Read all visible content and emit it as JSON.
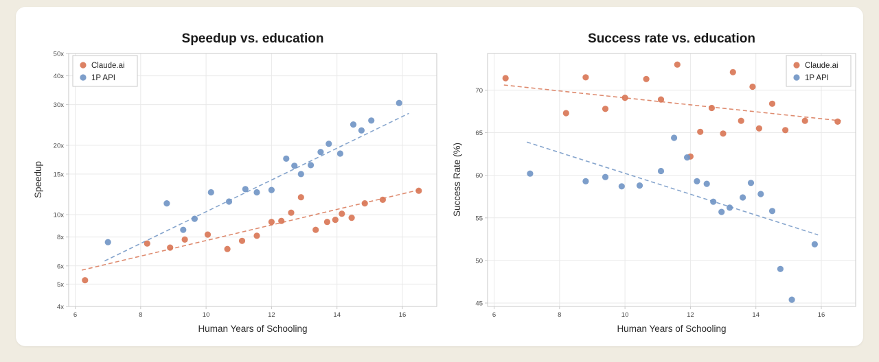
{
  "page": {
    "background_color": "#f0ece1",
    "card_color": "#ffffff"
  },
  "colors": {
    "grid": "#e9e9e9",
    "frame": "#c9c9c9",
    "tick_text": "#4a4a4a",
    "title_text": "#1a1a1a"
  },
  "chart_data": [
    {
      "type": "scatter",
      "title": "Speedup vs. education",
      "xlabel": "Human Years of Schooling",
      "ylabel": "Speedup",
      "yscale": "log",
      "xlim": [
        5.8,
        17.05
      ],
      "ylim": [
        4,
        50
      ],
      "xticks": [
        6,
        8,
        10,
        12,
        14,
        16
      ],
      "yticks": [
        4,
        5,
        6,
        8,
        10,
        15,
        20,
        30,
        40,
        50
      ],
      "ytick_suffix": "x",
      "grid": true,
      "legend_position": "top-left",
      "series": [
        {
          "name": "Claude.ai",
          "color": "#d97757",
          "points": [
            [
              6.3,
              5.2
            ],
            [
              8.2,
              7.5
            ],
            [
              8.9,
              7.2
            ],
            [
              9.35,
              7.8
            ],
            [
              10.05,
              8.2
            ],
            [
              10.65,
              7.1
            ],
            [
              11.1,
              7.7
            ],
            [
              11.55,
              8.1
            ],
            [
              12.0,
              9.3
            ],
            [
              12.3,
              9.4
            ],
            [
              12.6,
              10.2
            ],
            [
              12.9,
              11.9
            ],
            [
              13.35,
              8.6
            ],
            [
              13.7,
              9.3
            ],
            [
              13.95,
              9.5
            ],
            [
              14.15,
              10.1
            ],
            [
              14.45,
              9.7
            ],
            [
              14.85,
              11.2
            ],
            [
              15.4,
              11.6
            ],
            [
              16.5,
              12.7
            ]
          ],
          "trend": [
            [
              6.2,
              5.75
            ],
            [
              16.6,
              12.9
            ]
          ]
        },
        {
          "name": "1P API",
          "color": "#7296c5",
          "points": [
            [
              7.0,
              7.6
            ],
            [
              8.8,
              11.2
            ],
            [
              9.3,
              8.6
            ],
            [
              9.65,
              9.6
            ],
            [
              10.15,
              12.5
            ],
            [
              10.7,
              11.4
            ],
            [
              11.2,
              12.9
            ],
            [
              11.55,
              12.5
            ],
            [
              12.0,
              12.8
            ],
            [
              12.45,
              17.5
            ],
            [
              12.7,
              16.3
            ],
            [
              12.9,
              15.0
            ],
            [
              13.2,
              16.4
            ],
            [
              13.5,
              18.7
            ],
            [
              13.75,
              20.3
            ],
            [
              14.1,
              18.4
            ],
            [
              14.5,
              24.6
            ],
            [
              14.75,
              23.2
            ],
            [
              15.05,
              25.6
            ],
            [
              15.9,
              30.5
            ]
          ],
          "trend": [
            [
              6.9,
              6.3
            ],
            [
              16.2,
              27.5
            ]
          ]
        }
      ]
    },
    {
      "type": "scatter",
      "title": "Success rate vs. education",
      "xlabel": "Human Years of Schooling",
      "ylabel": "Success Rate (%)",
      "yscale": "linear",
      "xlim": [
        5.8,
        17.05
      ],
      "ylim": [
        44.6,
        74.3
      ],
      "xticks": [
        6,
        8,
        10,
        12,
        14,
        16
      ],
      "yticks": [
        45,
        50,
        55,
        60,
        65,
        70
      ],
      "ytick_suffix": "",
      "grid": true,
      "legend_position": "top-right",
      "series": [
        {
          "name": "Claude.ai",
          "color": "#d97757",
          "points": [
            [
              6.35,
              71.4
            ],
            [
              8.2,
              67.3
            ],
            [
              8.8,
              71.5
            ],
            [
              9.4,
              67.8
            ],
            [
              10.0,
              69.1
            ],
            [
              10.65,
              71.3
            ],
            [
              11.1,
              68.9
            ],
            [
              11.6,
              73.0
            ],
            [
              12.0,
              62.2
            ],
            [
              12.3,
              65.1
            ],
            [
              12.65,
              67.9
            ],
            [
              13.0,
              64.9
            ],
            [
              13.3,
              72.1
            ],
            [
              13.55,
              66.4
            ],
            [
              13.9,
              70.4
            ],
            [
              14.1,
              65.5
            ],
            [
              14.5,
              68.4
            ],
            [
              14.9,
              65.3
            ],
            [
              15.5,
              66.4
            ],
            [
              16.5,
              66.3
            ]
          ],
          "trend": [
            [
              6.3,
              70.6
            ],
            [
              16.6,
              66.4
            ]
          ]
        },
        {
          "name": "1P API",
          "color": "#7296c5",
          "points": [
            [
              7.1,
              60.2
            ],
            [
              8.8,
              59.3
            ],
            [
              9.4,
              59.8
            ],
            [
              9.9,
              58.7
            ],
            [
              10.45,
              58.8
            ],
            [
              11.1,
              60.5
            ],
            [
              11.5,
              64.4
            ],
            [
              11.9,
              62.1
            ],
            [
              12.2,
              59.3
            ],
            [
              12.5,
              59.0
            ],
            [
              12.7,
              56.9
            ],
            [
              12.95,
              55.7
            ],
            [
              13.2,
              56.2
            ],
            [
              13.6,
              57.4
            ],
            [
              13.85,
              59.1
            ],
            [
              14.15,
              57.8
            ],
            [
              14.5,
              55.8
            ],
            [
              14.75,
              49.0
            ],
            [
              15.1,
              45.4
            ],
            [
              15.8,
              51.9
            ]
          ],
          "trend": [
            [
              7.0,
              63.9
            ],
            [
              15.9,
              53.0
            ]
          ]
        }
      ]
    }
  ]
}
